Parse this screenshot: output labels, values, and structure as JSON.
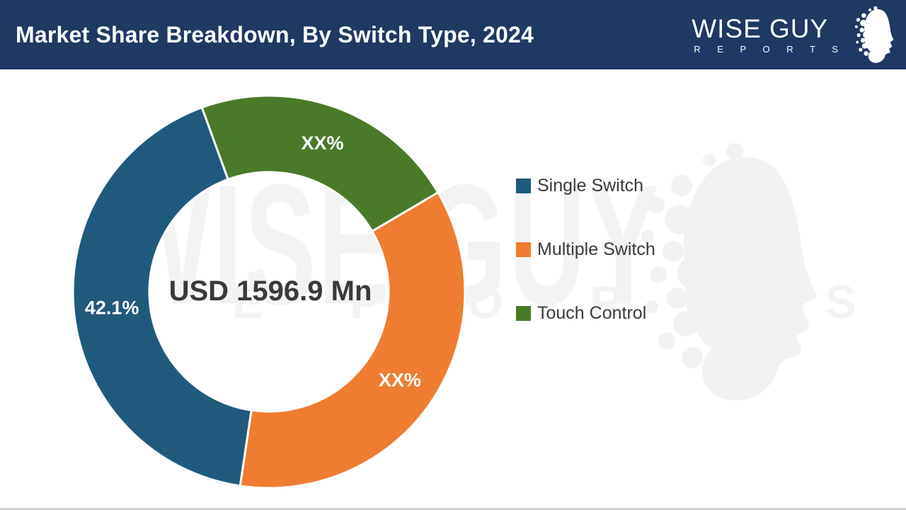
{
  "header": {
    "title": "Market Share Breakdown, By Switch Type, 2024",
    "bg_color": "#1f3864",
    "logo": {
      "line1": "WISE GUY",
      "line2": "R E P O R T S"
    }
  },
  "watermark": {
    "line1": "WISE GUY",
    "line2": "R E P O R T S"
  },
  "chart_data": {
    "type": "pie",
    "subtype": "donut",
    "title": "Market Share Breakdown, By Switch Type, 2024",
    "center_label": "USD 1596.9 Mn",
    "start_angle_deg": 110,
    "direction": "counterclockwise",
    "inner_radius_ratio": 0.61,
    "legend_position": "right",
    "segments": [
      {
        "name": "Single Switch",
        "label": "42.1%",
        "value_pct": 42.1,
        "color": "#1f5a7d"
      },
      {
        "name": "Multiple Switch",
        "label": "XX%",
        "value_pct": 35.8,
        "color": "#ee7d31"
      },
      {
        "name": "Touch Control",
        "label": "XX%",
        "value_pct": 22.1,
        "color": "#4a7a28"
      }
    ]
  }
}
